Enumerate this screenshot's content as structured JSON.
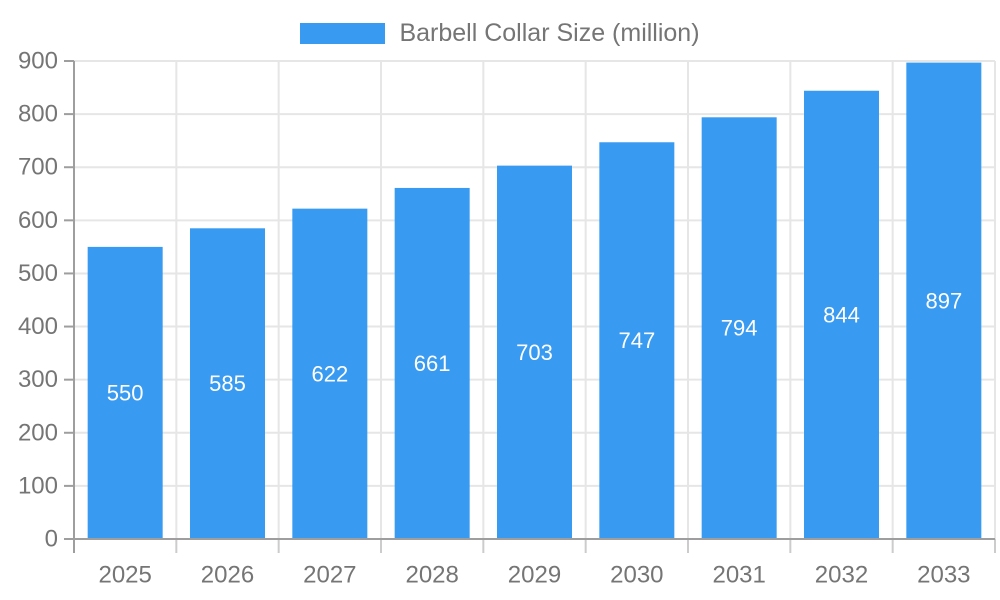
{
  "chart_data": {
    "type": "bar",
    "title": "Barbell Collar Size (million)",
    "categories": [
      "2025",
      "2026",
      "2027",
      "2028",
      "2029",
      "2030",
      "2031",
      "2032",
      "2033"
    ],
    "values": [
      550,
      585,
      622,
      661,
      703,
      747,
      794,
      844,
      897
    ],
    "xlabel": "",
    "ylabel": "",
    "ylim": [
      0,
      900
    ],
    "ytick_step": 100,
    "grid": true,
    "legend_position": "top-center",
    "colors": {
      "bar": "#389AF0",
      "value_label": "#FFFFFF",
      "axis_text": "#757575",
      "gridline": "#E6E6E6",
      "axis_line": "#9E9E9E",
      "tick_line": "#CCCCCC"
    }
  }
}
